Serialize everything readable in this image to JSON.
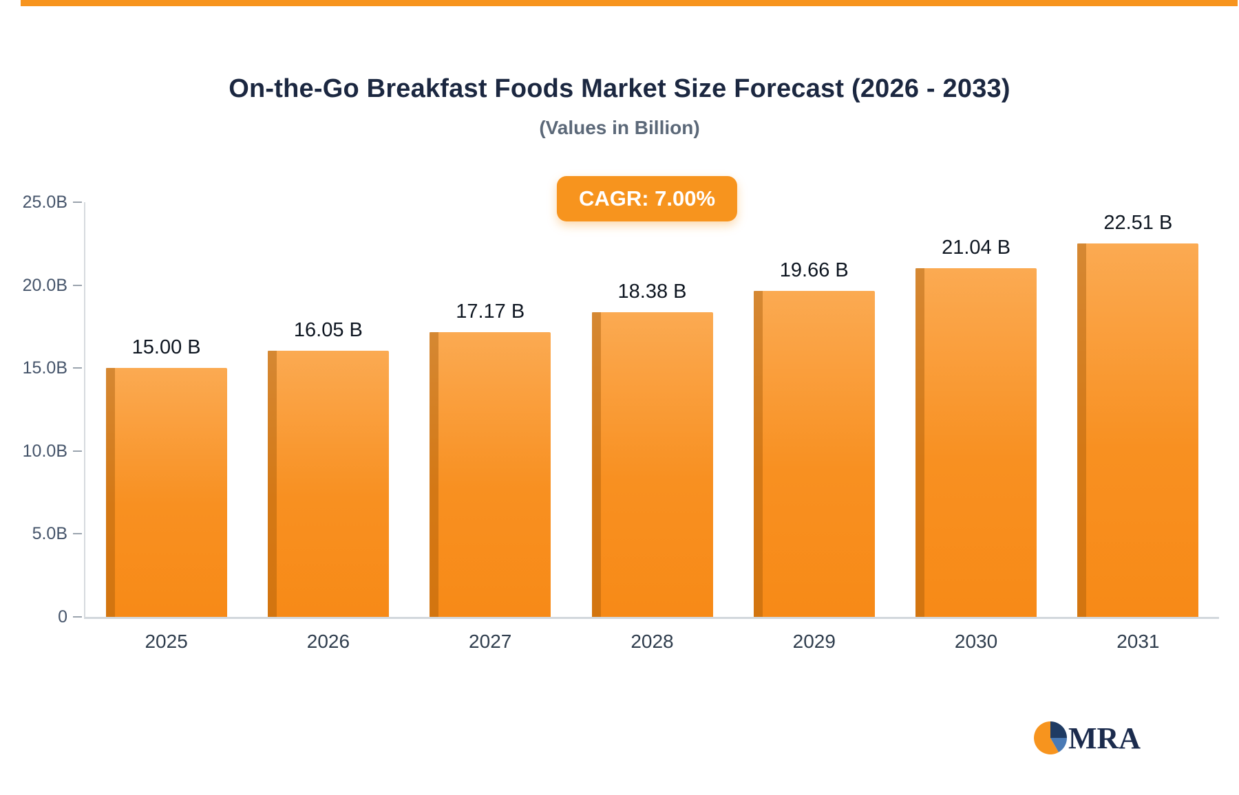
{
  "page": {
    "accent_color": "#f7941e",
    "title_color": "#1b2740",
    "background": "#ffffff"
  },
  "chart_data": {
    "type": "bar",
    "title": "On-the-Go Breakfast Foods Market Size Forecast (2026 - 2033)",
    "subtitle": "(Values in Billion)",
    "badge": "CAGR: 7.00%",
    "categories": [
      "2025",
      "2026",
      "2027",
      "2028",
      "2029",
      "2030",
      "2031"
    ],
    "values": [
      15.0,
      16.05,
      17.17,
      18.38,
      19.66,
      21.04,
      22.51
    ],
    "value_labels": [
      "15.00 B",
      "16.05 B",
      "17.17 B",
      "18.38 B",
      "19.66 B",
      "21.04 B",
      "22.51 B"
    ],
    "xlabel": "",
    "ylabel": "",
    "ylim": [
      0,
      25
    ],
    "y_tick_labels": [
      "25.0B",
      "20.0B",
      "15.0B",
      "10.0B",
      "5.0B",
      "0"
    ],
    "y_tick_values": [
      25,
      20,
      15,
      10,
      5,
      0
    ],
    "grid": "off",
    "legend": "none",
    "bar_color_top": "#fbaa52",
    "bar_color_bottom": "#f78a17",
    "bar_side_color": "#9e5404",
    "axis_color": "#d6dade"
  },
  "logo": {
    "text": "MRA",
    "pie_orange": "#f7941e",
    "pie_navy": "#1f3b63",
    "pie_blue": "#4a7ab5",
    "text_color": "#1b2b4d"
  }
}
